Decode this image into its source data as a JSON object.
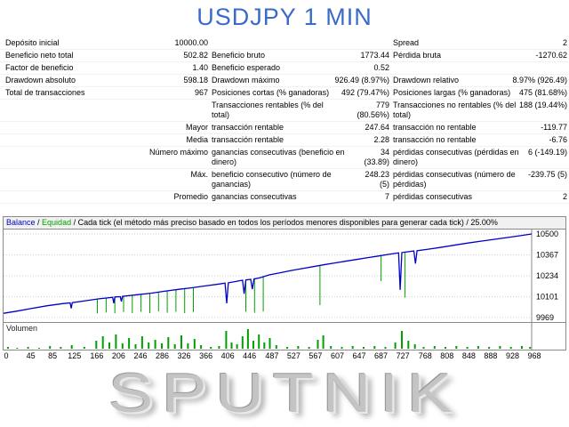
{
  "title": "USDJPY 1 MIN",
  "report": {
    "rows": [
      [
        "Depósito inicial",
        "10000.00",
        "",
        "",
        "Spread",
        "2"
      ],
      [
        "Beneficio neto total",
        "502.82",
        "Beneficio bruto",
        "1773.44",
        "Pérdida bruta",
        "-1270.62"
      ],
      [
        "Factor de beneficio",
        "1.40",
        "Beneficio esperado",
        "0.52",
        "",
        ""
      ],
      [
        "Drawdown absoluto",
        "598.18",
        "Drawdown máximo",
        "926.49 (8.97%)",
        "Drawdown relativo",
        "8.97% (926.49)"
      ],
      [
        "Total de transacciones",
        "967",
        "Posiciones cortas (% ganadoras)",
        "492 (79.47%)",
        "Posiciones largas (% ganadoras)",
        "475 (81.68%)"
      ],
      [
        "",
        "",
        "Transacciones rentables (% del total)",
        "779 (80.56%)",
        "Transacciones no rentables (% del total)",
        "188 (19.44%)"
      ],
      [
        "",
        "Mayor",
        "transacción rentable",
        "247.64",
        "transacción no rentable",
        "-119.77"
      ],
      [
        "",
        "Media",
        "transacción rentable",
        "2.28",
        "transacción no rentable",
        "-6.76"
      ],
      [
        "",
        "Número máximo",
        "ganancias consecutivas (beneficio en dinero)",
        "34 (33.89)",
        "pérdidas consecutivas (pérdidas en dinero)",
        "6 (-149.19)"
      ],
      [
        "",
        "Máx.",
        "beneficio consecutivo (número de ganancias)",
        "248.23 (5)",
        "pérdidas consecutivas (número de pérdidas)",
        "-239.75 (5)"
      ],
      [
        "",
        "Promedio",
        "ganancias consecutivas",
        "7",
        "pérdidas consecutivas",
        "2"
      ]
    ]
  },
  "chart_header": {
    "balance_label": "Balance",
    "separator": " / ",
    "equity_label": "Equidad",
    "description": " / Cada tick (el método más preciso basado en todos los períodos menores disponibles para generar cada tick) / 25.00%"
  },
  "chart_data": {
    "type": "line",
    "title": "Balance / Equidad tester graph",
    "x_range": [
      0,
      968
    ],
    "y_range": [
      9969,
      10500
    ],
    "y_ticks": [
      10500,
      10367,
      10234,
      10101,
      9969
    ],
    "x_ticks": [
      0,
      45,
      85,
      125,
      166,
      206,
      246,
      286,
      326,
      366,
      406,
      446,
      487,
      527,
      567,
      607,
      647,
      687,
      727,
      768,
      808,
      848,
      888,
      928,
      968
    ],
    "grid": "horizontal-dotted",
    "legend_position": "top-bar",
    "series": [
      {
        "name": "Balance",
        "color": "#0000c8",
        "points": [
          [
            0,
            9996
          ],
          [
            25,
            10010
          ],
          [
            50,
            10026
          ],
          [
            80,
            10044
          ],
          [
            110,
            10058
          ],
          [
            122,
            10062
          ],
          [
            124,
            10028
          ],
          [
            126,
            10064
          ],
          [
            150,
            10076
          ],
          [
            175,
            10088
          ],
          [
            200,
            10098
          ],
          [
            202,
            10060
          ],
          [
            204,
            10100
          ],
          [
            214,
            10102
          ],
          [
            216,
            10072
          ],
          [
            218,
            10104
          ],
          [
            245,
            10114
          ],
          [
            270,
            10124
          ],
          [
            295,
            10136
          ],
          [
            320,
            10148
          ],
          [
            345,
            10158
          ],
          [
            370,
            10170
          ],
          [
            395,
            10182
          ],
          [
            406,
            10188
          ],
          [
            409,
            10060
          ],
          [
            412,
            10190
          ],
          [
            425,
            10198
          ],
          [
            438,
            10206
          ],
          [
            441,
            10120
          ],
          [
            444,
            10208
          ],
          [
            453,
            10212
          ],
          [
            456,
            10150
          ],
          [
            459,
            10214
          ],
          [
            470,
            10222
          ],
          [
            487,
            10240
          ],
          [
            505,
            10252
          ],
          [
            527,
            10268
          ],
          [
            550,
            10282
          ],
          [
            567,
            10292
          ],
          [
            590,
            10306
          ],
          [
            607,
            10316
          ],
          [
            625,
            10326
          ],
          [
            647,
            10338
          ],
          [
            665,
            10348
          ],
          [
            687,
            10360
          ],
          [
            705,
            10370
          ],
          [
            724,
            10380
          ],
          [
            727,
            10145
          ],
          [
            730,
            10382
          ],
          [
            752,
            10392
          ],
          [
            755,
            10312
          ],
          [
            758,
            10394
          ],
          [
            780,
            10404
          ],
          [
            800,
            10414
          ],
          [
            825,
            10428
          ],
          [
            850,
            10442
          ],
          [
            875,
            10454
          ],
          [
            900,
            10466
          ],
          [
            925,
            10478
          ],
          [
            945,
            10488
          ],
          [
            968,
            10500
          ]
        ]
      },
      {
        "name": "Equidad",
        "color": "#00a000",
        "spikes": [
          [
            172,
            10086,
            9996
          ],
          [
            188,
            10092,
            10002
          ],
          [
            204,
            10100,
            9996
          ],
          [
            220,
            10104,
            10004
          ],
          [
            236,
            10110,
            9998
          ],
          [
            252,
            10116,
            10006
          ],
          [
            268,
            10122,
            9998
          ],
          [
            284,
            10130,
            10008
          ],
          [
            300,
            10138,
            10000
          ],
          [
            316,
            10144,
            10006
          ],
          [
            332,
            10152,
            9998
          ],
          [
            348,
            10160,
            10004
          ],
          [
            444,
            10208,
            10006
          ],
          [
            460,
            10216,
            10000
          ],
          [
            476,
            10226,
            10008
          ],
          [
            580,
            10300,
            10048
          ],
          [
            692,
            10362,
            10200
          ],
          [
            736,
            10384,
            10096
          ]
        ]
      }
    ],
    "volume": {
      "label": "Volumen",
      "color": "#00a000",
      "bars": [
        [
          8,
          2
        ],
        [
          25,
          1
        ],
        [
          45,
          2
        ],
        [
          65,
          1
        ],
        [
          85,
          3
        ],
        [
          105,
          2
        ],
        [
          125,
          4
        ],
        [
          148,
          2
        ],
        [
          170,
          9
        ],
        [
          182,
          14
        ],
        [
          194,
          7
        ],
        [
          206,
          16
        ],
        [
          218,
          6
        ],
        [
          230,
          12
        ],
        [
          242,
          5
        ],
        [
          254,
          14
        ],
        [
          266,
          7
        ],
        [
          278,
          10
        ],
        [
          290,
          6
        ],
        [
          302,
          13
        ],
        [
          314,
          5
        ],
        [
          326,
          15
        ],
        [
          338,
          6
        ],
        [
          350,
          11
        ],
        [
          362,
          4
        ],
        [
          380,
          2
        ],
        [
          395,
          3
        ],
        [
          408,
          20
        ],
        [
          418,
          7
        ],
        [
          428,
          5
        ],
        [
          438,
          14
        ],
        [
          448,
          22
        ],
        [
          458,
          9
        ],
        [
          468,
          16
        ],
        [
          478,
          7
        ],
        [
          488,
          12
        ],
        [
          500,
          4
        ],
        [
          520,
          2
        ],
        [
          540,
          3
        ],
        [
          560,
          2
        ],
        [
          576,
          10
        ],
        [
          586,
          15
        ],
        [
          600,
          3
        ],
        [
          620,
          2
        ],
        [
          640,
          3
        ],
        [
          660,
          2
        ],
        [
          680,
          3
        ],
        [
          700,
          2
        ],
        [
          718,
          7
        ],
        [
          730,
          20
        ],
        [
          742,
          9
        ],
        [
          754,
          5
        ],
        [
          770,
          2
        ],
        [
          790,
          3
        ],
        [
          810,
          2
        ],
        [
          830,
          3
        ],
        [
          850,
          2
        ],
        [
          870,
          3
        ],
        [
          890,
          2
        ],
        [
          910,
          3
        ],
        [
          930,
          2
        ],
        [
          950,
          3
        ],
        [
          965,
          2
        ]
      ]
    }
  },
  "watermark": "SPUTNIK"
}
